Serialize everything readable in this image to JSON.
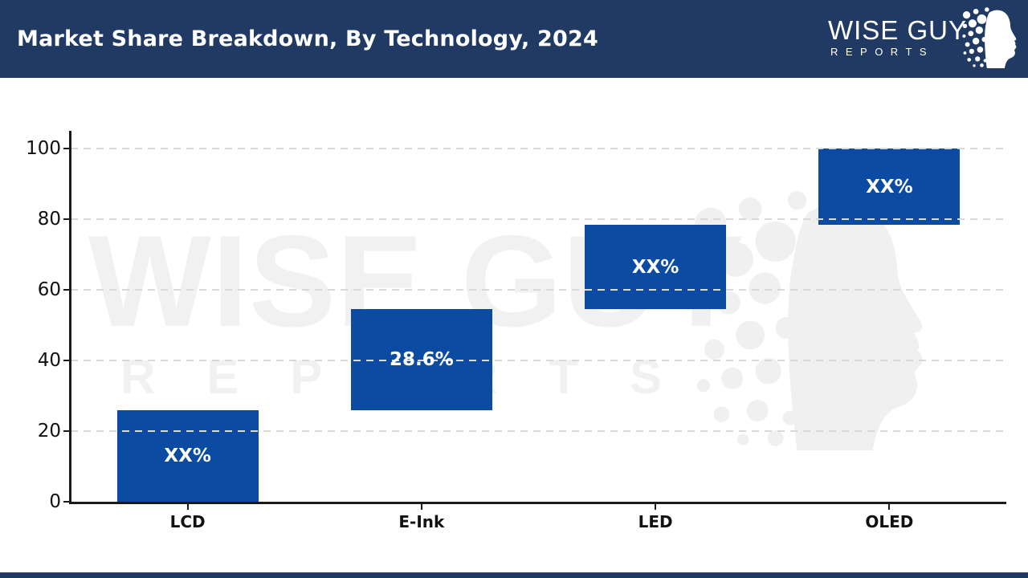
{
  "header": {
    "brand": {
      "line1": "WISE GUY",
      "line2": "REPORTS"
    }
  },
  "watermark": {
    "line1": "WISE GUY",
    "line2": "REPORTS"
  },
  "chart_data": {
    "type": "bar",
    "subtype": "waterfall-floating-bars",
    "title": "Market Share Breakdown, By Technology, 2024",
    "categories": [
      "LCD",
      "E-Ink",
      "LED",
      "OLED"
    ],
    "segments": [
      {
        "category": "LCD",
        "start": 0,
        "end": 26.0,
        "value": 26.0,
        "label": "XX%"
      },
      {
        "category": "E-Ink",
        "start": 26.0,
        "end": 54.6,
        "value": 28.6,
        "label": "28.6%"
      },
      {
        "category": "LED",
        "start": 54.6,
        "end": 78.3,
        "value": 23.7,
        "label": "XX%"
      },
      {
        "category": "OLED",
        "start": 78.3,
        "end": 100.0,
        "value": 21.7,
        "label": "XX%"
      }
    ],
    "ylim": [
      0,
      100
    ],
    "yticks": [
      0,
      20,
      40,
      60,
      80,
      100
    ],
    "xlabel": "",
    "ylabel": "",
    "grid": "horizontal-dashed",
    "legend": "none"
  },
  "colors": {
    "header_bg": "#213a64",
    "footer_bg": "#213a64",
    "bar": "#0b4ba1",
    "grid": "#d9d9d9",
    "axis": "#1a1a1a",
    "watermark": "#f1f1f2"
  }
}
